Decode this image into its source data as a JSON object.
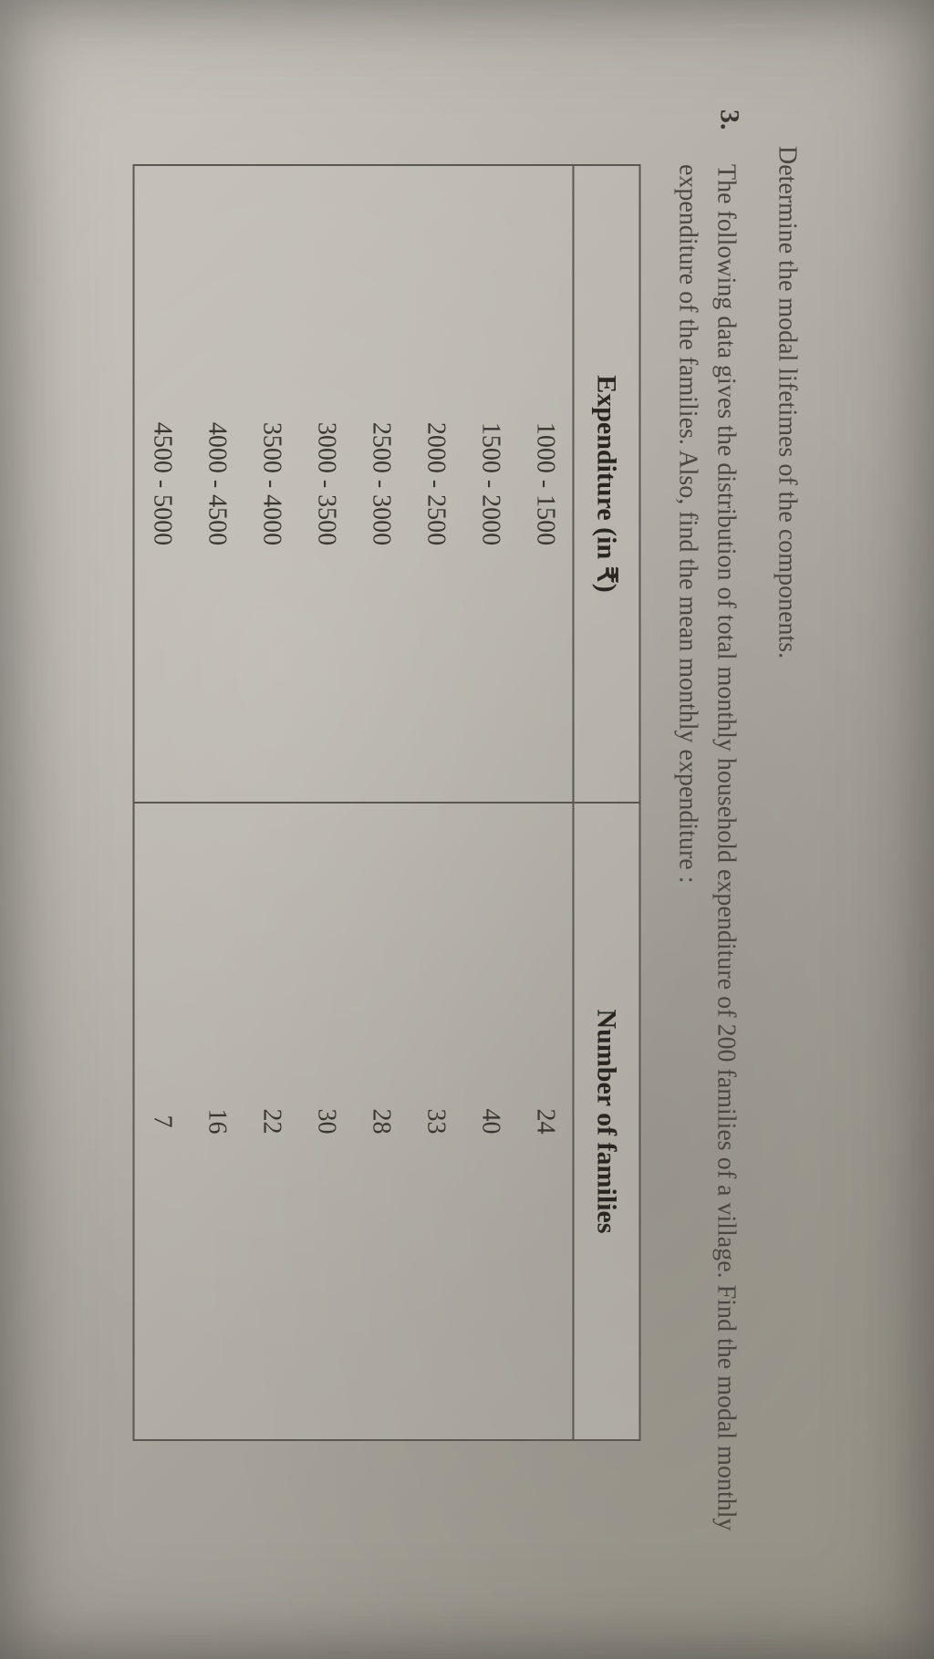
{
  "intro_text": "Determine the modal lifetimes of the components.",
  "question": {
    "number": "3.",
    "text": "The following data gives the distribution of total monthly household expenditure of 200 families of a village. Find the modal monthly expenditure of the families. Also, find the mean monthly expenditure :"
  },
  "table": {
    "type": "table",
    "columns": [
      "Expenditure (in ₹)",
      "Number of families"
    ],
    "rows": [
      [
        "1000 - 1500",
        "24"
      ],
      [
        "1500 - 2000",
        "40"
      ],
      [
        "2000 - 2500",
        "33"
      ],
      [
        "2500 - 3000",
        "28"
      ],
      [
        "3000 - 3500",
        "30"
      ],
      [
        "3500 - 4000",
        "22"
      ],
      [
        "4000 - 4500",
        "16"
      ],
      [
        "4500 - 5000",
        "7"
      ]
    ],
    "border_color": "#5a5650",
    "text_color": "#3a3632",
    "header_fontsize": 30,
    "cell_fontsize": 28,
    "column_widths": [
      "50%",
      "50%"
    ],
    "alignment": [
      "center",
      "center"
    ]
  },
  "styling": {
    "background_gradient_start": "#c8c4bc",
    "background_gradient_end": "#989488",
    "body_font": "Georgia, Times New Roman, serif",
    "rotation_deg": 90
  }
}
